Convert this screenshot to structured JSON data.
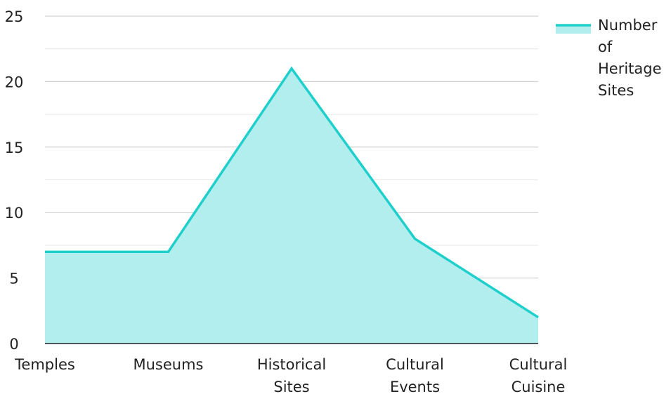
{
  "chart_data": {
    "type": "area",
    "categories": [
      "Temples",
      "Museums",
      "Historical Sites",
      "Cultural Events",
      "Cultural Cuisine"
    ],
    "category_lines": [
      [
        "Temples"
      ],
      [
        "Museums"
      ],
      [
        "Historical",
        "Sites"
      ],
      [
        "Cultural",
        "Events"
      ],
      [
        "Cultural",
        "Cuisine"
      ]
    ],
    "series": [
      {
        "name": "Number of Heritage Sites",
        "values": [
          7,
          7,
          21,
          8,
          2
        ]
      }
    ],
    "legend_lines": [
      "Number",
      "of",
      "Heritage",
      "Sites"
    ],
    "ylim": [
      0,
      25
    ],
    "y_ticks": [
      0,
      5,
      10,
      15,
      20,
      25
    ],
    "minor_grid": true,
    "legend_position": "top-right",
    "colors": {
      "line": "#1fcfcc",
      "fill": "#b2eeee",
      "grid_major": "#c8c8c8",
      "grid_minor": "#e6e6e6",
      "axis": "#222222"
    }
  }
}
